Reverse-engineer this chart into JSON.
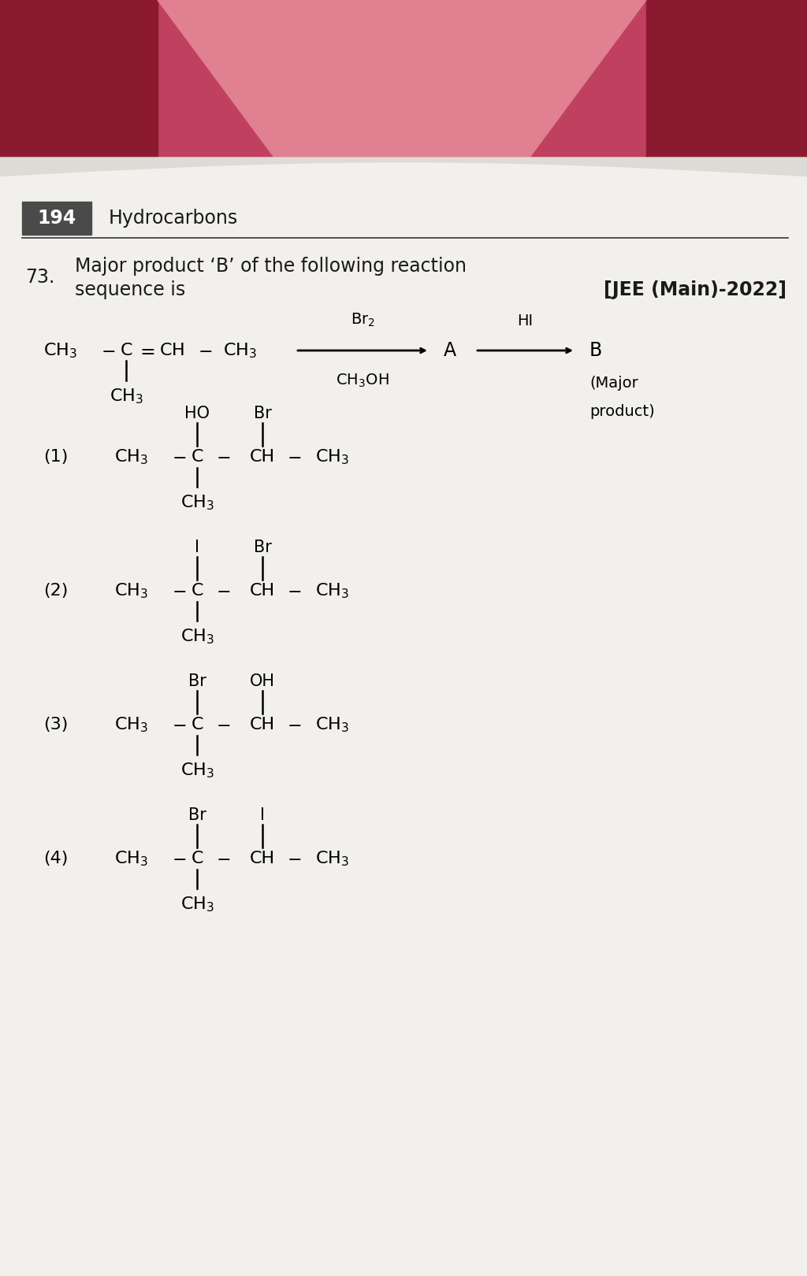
{
  "bg_top_color": "#a83050",
  "bg_paper_color": "#f2f0ed",
  "page_number": "194",
  "page_title": "Hydrocarbons",
  "question_number": "73.",
  "question_text_line1": "Major product ‘B’ of the following reaction",
  "question_text_line2": "sequence is",
  "question_ref": "[JEE (Main)-2022]",
  "reagent1_top": "Br₂",
  "reagent1_bot": "CH₃OH",
  "reagent2": "HI",
  "options_top_labels": [
    [
      "HO",
      "Br"
    ],
    [
      "I",
      "Br"
    ],
    [
      "Br",
      "OH"
    ],
    [
      "Br",
      "I"
    ]
  ],
  "opt_numbers": [
    "(1)",
    "(2)",
    "(3)",
    "(4)"
  ],
  "text_color": "#1a1a1a",
  "page_num_box_color": "#4a4a4a",
  "line_color": "#333333"
}
